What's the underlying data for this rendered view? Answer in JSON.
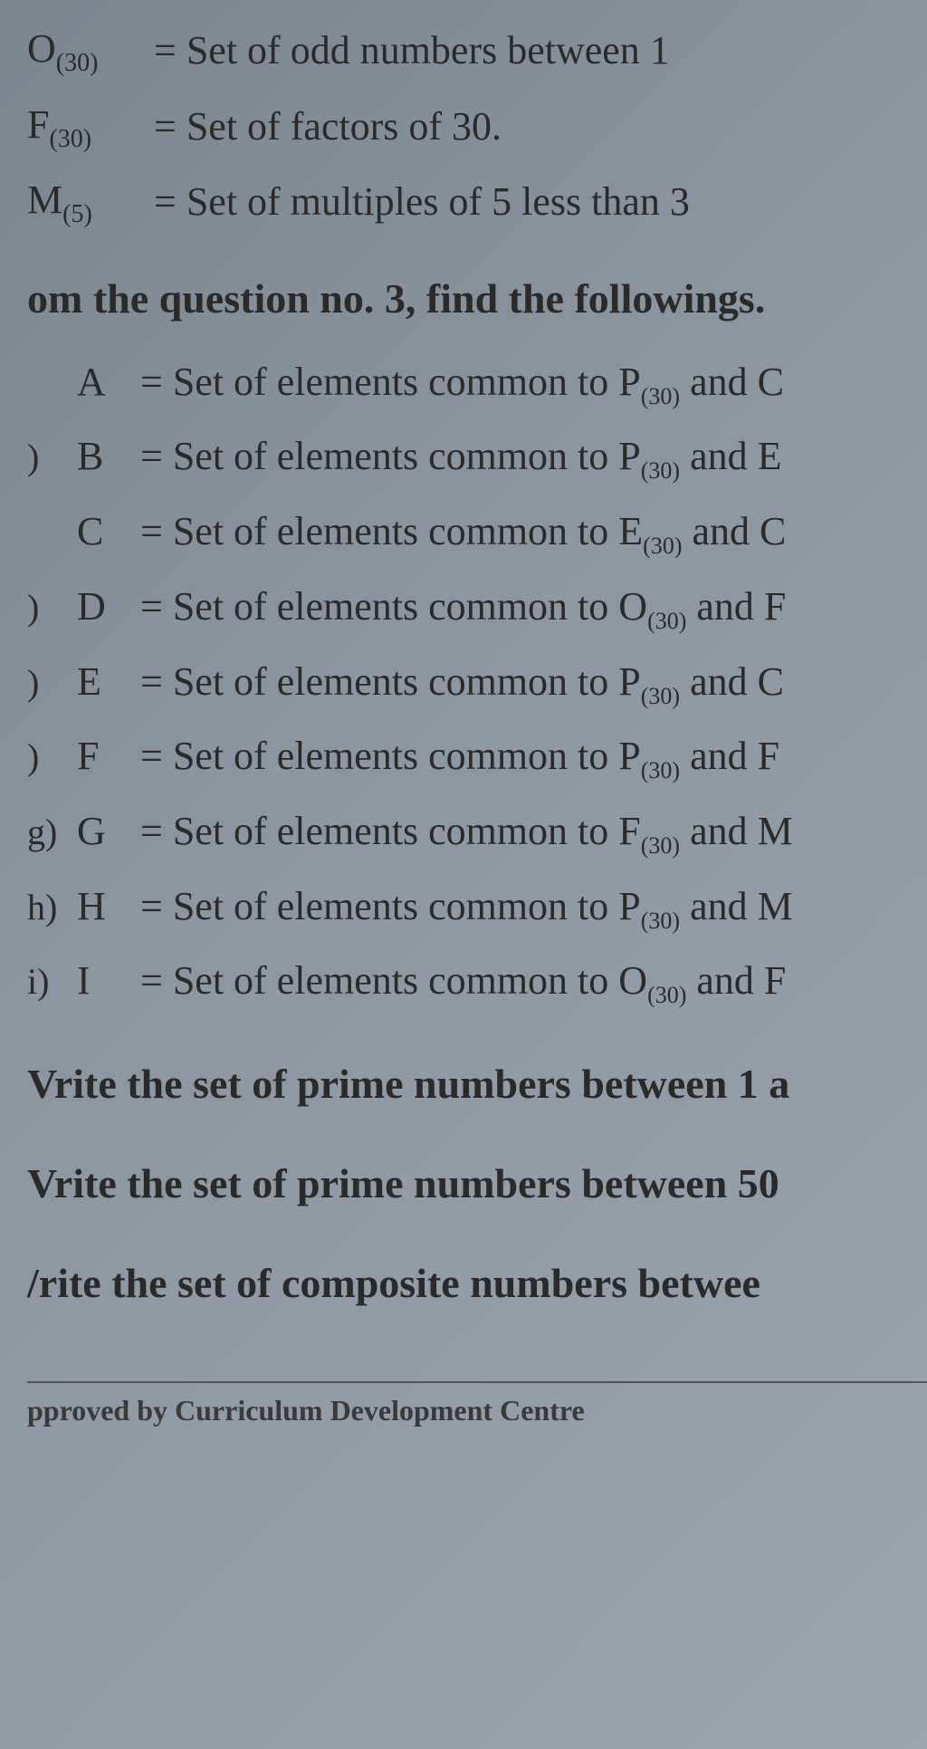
{
  "definitions": [
    {
      "symbol": "O",
      "sub": "(30)",
      "text": "= Set of odd numbers between 1"
    },
    {
      "symbol": "F",
      "sub": "(30)",
      "text": "= Set of factors of 30."
    },
    {
      "symbol": "M",
      "sub": "(5)",
      "text": "= Set of multiples of 5 less than 3"
    }
  ],
  "heading": "om the question no. 3, find the followings.",
  "items": [
    {
      "marker": "",
      "letter": "A",
      "prefix": "= Set of elements common to P",
      "sub": "(30)",
      "suffix": " and C"
    },
    {
      "marker": ")",
      "letter": "B",
      "prefix": "= Set of elements common to P",
      "sub": "(30)",
      "suffix": " and E"
    },
    {
      "marker": "",
      "letter": "C",
      "prefix": "= Set of elements common to E",
      "sub": "(30)",
      "suffix": " and C"
    },
    {
      "marker": ")",
      "letter": "D",
      "prefix": "= Set of elements common to O",
      "sub": "(30)",
      "suffix": " and F"
    },
    {
      "marker": ")",
      "letter": "E",
      "prefix": "= Set of elements common to P",
      "sub": "(30)",
      "suffix": " and C"
    },
    {
      "marker": ")",
      "letter": "F",
      "prefix": "= Set of elements common to P",
      "sub": "(30)",
      "suffix": " and F"
    },
    {
      "marker": "g)",
      "letter": "G",
      "prefix": "= Set of elements common to F",
      "sub": "(30)",
      "suffix": " and M"
    },
    {
      "marker": "h)",
      "letter": "H",
      "prefix": "= Set of elements common to P",
      "sub": "(30)",
      "suffix": " and M"
    },
    {
      "marker": "i)",
      "letter": "I",
      "prefix": "= Set of elements common to O",
      "sub": "(30)",
      "suffix": " and F"
    }
  ],
  "writes": [
    "Vrite the set of prime numbers between 1 a",
    "Vrite the set of prime numbers between 50",
    "/rite the set of composite numbers betwee"
  ],
  "footer": "pproved by Curriculum Development Centre"
}
